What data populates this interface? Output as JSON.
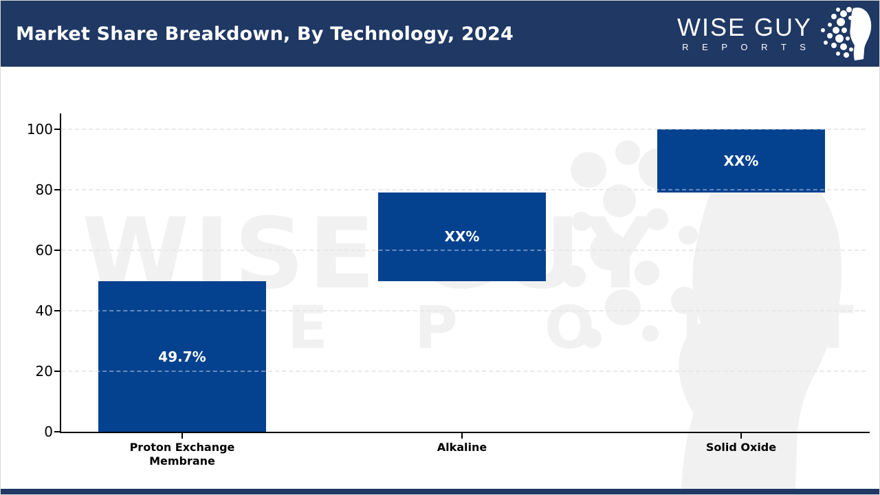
{
  "header": {
    "title": "Market Share Breakdown, By Technology, 2024",
    "logo": {
      "name": "WISE GUY",
      "subtitle": "R E P O R T S"
    }
  },
  "watermark": {
    "line1": "WISE GUY",
    "line2": "R E P O R T S"
  },
  "chart_data": {
    "type": "bar",
    "variant": "waterfall",
    "title": "Market Share Breakdown, By Technology, 2024",
    "categories": [
      "Proton Exchange Membrane",
      "Alkaline",
      "Solid Oxide"
    ],
    "bars": [
      {
        "category": "Proton Exchange Membrane",
        "start": 0,
        "end": 49.7,
        "label": "49.7%"
      },
      {
        "category": "Alkaline",
        "start": 49.7,
        "end": 79.2,
        "label": "XX%"
      },
      {
        "category": "Solid Oxide",
        "start": 79.2,
        "end": 100,
        "label": "XX%"
      }
    ],
    "xlabel": "",
    "ylabel": "",
    "ylim": [
      0,
      100
    ],
    "yticks": [
      0,
      20,
      40,
      60,
      80,
      100
    ],
    "grid": {
      "axis": "y",
      "style": "dashed"
    },
    "legend": "none",
    "bar_color": "#04418f",
    "bar_label_color": "#ffffff"
  },
  "colors": {
    "header_bg": "#1f3864",
    "footer_bg": "#1f3864",
    "bar": "#04418f",
    "axis": "#000000",
    "gridline": "#d9d9d9",
    "watermark": "#f1f1f2",
    "page_border": "#d9d9d9"
  }
}
